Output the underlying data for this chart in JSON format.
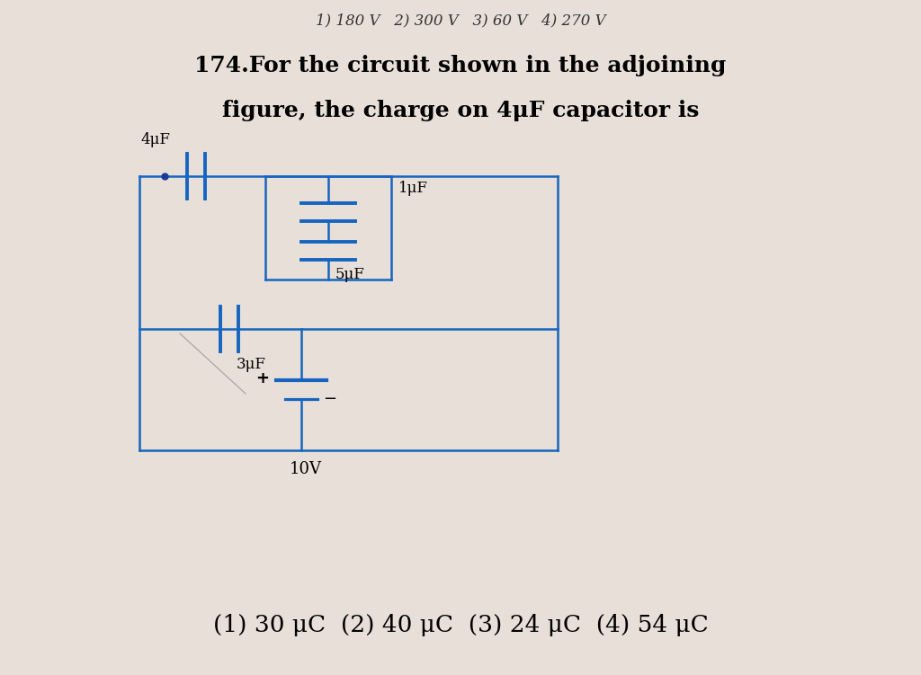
{
  "header": "1) 180 V   2) 300 V   3) 60 V   4) 270 V",
  "title_line1": "174.For the circuit shown in the adjoining",
  "title_line2": "figure, the charge on 4μF capacitor is",
  "options": "(1) 30 μC  (2) 40 μC  (3) 24 μC  (4) 54 μC",
  "circuit_color": "#1565C0",
  "bg_color": "#e8e0d8",
  "label_4uF": "4μF",
  "label_1uF": "1μF",
  "label_5uF": "5μF",
  "label_3uF": "3μF",
  "label_10V": "10V",
  "dot_color": "#1a3a99"
}
